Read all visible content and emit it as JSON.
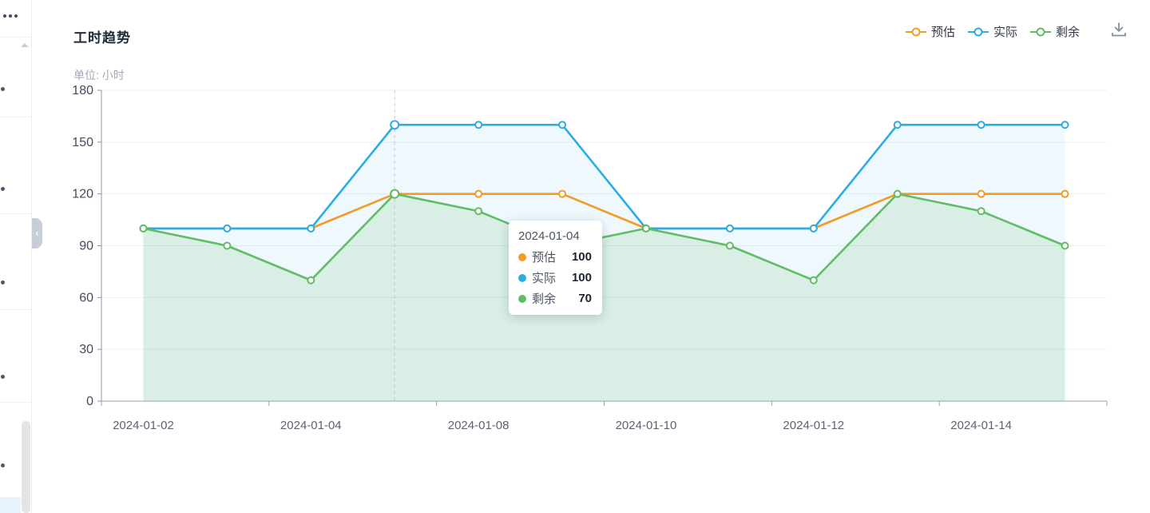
{
  "page": {
    "title": "工时趋势",
    "unit_label": "单位: 小时"
  },
  "toolbar": {
    "download_icon": "download-icon"
  },
  "chart_data": {
    "type": "line",
    "x_tick_labels": [
      "2024-01-02",
      "2024-01-04",
      "2024-01-08",
      "2024-01-10",
      "2024-01-12",
      "2024-01-14"
    ],
    "x_label_every": 2,
    "points_count": 12,
    "series": [
      {
        "name": "预估",
        "color": "#F59A23",
        "area": false,
        "values": [
          100,
          100,
          100,
          120,
          120,
          120,
          100,
          100,
          100,
          120,
          120,
          120
        ]
      },
      {
        "name": "实际",
        "color": "#2BACE2",
        "area": true,
        "area_color": "rgba(43,172,226,0.08)",
        "values": [
          100,
          100,
          100,
          160,
          160,
          160,
          100,
          100,
          100,
          160,
          160,
          160
        ]
      },
      {
        "name": "剩余",
        "color": "#62BC66",
        "area": true,
        "area_color": "rgba(98,188,102,0.15)",
        "values": [
          100,
          90,
          70,
          120,
          110,
          90,
          100,
          90,
          70,
          120,
          110,
          90
        ]
      }
    ],
    "legend": [
      "预估",
      "实际",
      "剩余"
    ],
    "y_ticks": [
      0,
      30,
      60,
      90,
      120,
      150,
      180
    ],
    "ylim": [
      0,
      180
    ],
    "grid": true,
    "legend_position": "top-right"
  },
  "tooltip": {
    "date": "2024-01-04",
    "pointer_index": 3,
    "rows": [
      {
        "label": "预估",
        "value": "100",
        "color": "#F59A23"
      },
      {
        "label": "实际",
        "value": "100",
        "color": "#2BACE2"
      },
      {
        "label": "剩余",
        "value": "70",
        "color": "#62BC66"
      }
    ]
  }
}
